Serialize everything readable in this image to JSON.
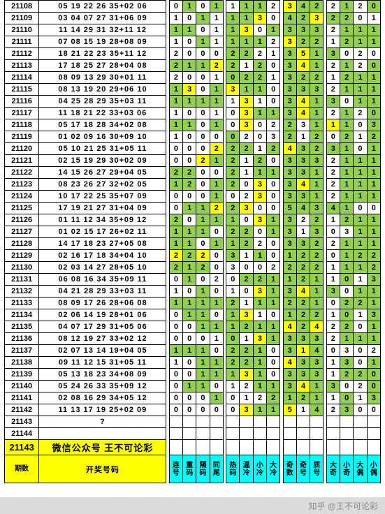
{
  "colors": {
    "yellow": "#ffff00",
    "green": "#92d050",
    "cyan": "#00ffff",
    "border": "#000000",
    "bg": "#ffffff"
  },
  "promo_text": "微信公众号 王不可论彩",
  "footer_text": "知乎 @王不可论彩",
  "headers": {
    "issue": "期数",
    "draw": "开奖号码",
    "stats": [
      "连号",
      "重码",
      "隔码",
      "同尾",
      "热码",
      "温冷",
      "小冷",
      "大冷",
      "奇数",
      "奇号",
      "质号",
      "大奇",
      "小奇",
      "大偶",
      "小偶"
    ]
  },
  "hl_cols": [
    3,
    8,
    9,
    10
  ],
  "rows": [
    {
      "i": "21108",
      "d": "05 19 22 26 35+02 06",
      "s": [
        0,
        1,
        0,
        1,
        1,
        1,
        1,
        2,
        3,
        4,
        2,
        2,
        1,
        2,
        0
      ],
      "g": [
        1,
        3,
        5,
        6,
        9,
        10,
        12,
        14
      ],
      "y": [
        8
      ]
    },
    {
      "i": "21109",
      "d": "03 04 07 27 31+06 09",
      "s": [
        1,
        0,
        1,
        1,
        1,
        1,
        3,
        0,
        4,
        2,
        3,
        2,
        2,
        0,
        1
      ],
      "g": [
        2,
        4,
        5,
        8,
        9,
        11,
        12
      ],
      "y": [
        6,
        10
      ]
    },
    {
      "i": "21110",
      "d": "11 14 29 31 32+11 12",
      "s": [
        1,
        1,
        0,
        1,
        1,
        3,
        0,
        1,
        3,
        3,
        3,
        2,
        1,
        1,
        1
      ],
      "g": [
        0,
        1,
        4,
        7,
        8,
        9,
        10,
        12,
        13,
        14
      ],
      "y": [
        5
      ]
    },
    {
      "i": "21111",
      "d": "07 08 15 19 28+08 09",
      "s": [
        1,
        0,
        1,
        1,
        1,
        1,
        1,
        2,
        3,
        2,
        2,
        1,
        2,
        1,
        1
      ],
      "g": [
        2,
        4,
        5,
        6,
        9,
        10,
        12,
        13,
        14
      ],
      "y": [
        8
      ]
    },
    {
      "i": "21112",
      "d": "18 21 22 23 35+11 12",
      "s": [
        2,
        0,
        0,
        0,
        2,
        2,
        2,
        1,
        3,
        5,
        1,
        3,
        0,
        2,
        0
      ],
      "g": [
        4,
        5,
        8,
        10,
        11
      ],
      "y": [
        9
      ]
    },
    {
      "i": "21113",
      "d": "17 18 25 27 28+04 08",
      "s": [
        2,
        1,
        1,
        2,
        2,
        1,
        2,
        0,
        3,
        4,
        1,
        2,
        1,
        2,
        0
      ],
      "g": [
        0,
        1,
        2,
        4,
        6,
        8,
        10,
        12,
        14
      ],
      "y": [
        3,
        9
      ]
    },
    {
      "i": "21114",
      "d": "08 09 13 29 30+01 11",
      "s": [
        2,
        0,
        0,
        1,
        0,
        2,
        2,
        1,
        3,
        2,
        2,
        1,
        2,
        1,
        1
      ],
      "g": [
        4,
        5,
        6,
        8,
        9,
        10,
        12,
        13,
        14
      ],
      "y": []
    },
    {
      "i": "21115",
      "d": "08 13 19 20 29+06 10",
      "s": [
        1,
        3,
        0,
        1,
        3,
        1,
        1,
        0,
        3,
        3,
        3,
        2,
        1,
        1,
        1
      ],
      "g": [
        0,
        3,
        5,
        6,
        8,
        9,
        10,
        12,
        13,
        14
      ],
      "y": [
        1,
        4
      ]
    },
    {
      "i": "21116",
      "d": "04 25 28 29 35+03 11",
      "s": [
        1,
        1,
        1,
        1,
        1,
        3,
        1,
        0,
        3,
        4,
        1,
        3,
        0,
        1,
        1
      ],
      "g": [
        0,
        1,
        2,
        3,
        8,
        10,
        11,
        13,
        14
      ],
      "y": [
        5,
        9
      ]
    },
    {
      "i": "21117",
      "d": "11 18 21 22 33+03 06",
      "s": [
        1,
        0,
        0,
        1,
        0,
        3,
        1,
        1,
        3,
        4,
        1,
        2,
        1,
        2,
        0
      ],
      "g": [
        6,
        7,
        8,
        10,
        12,
        14
      ],
      "y": [
        5,
        9
      ]
    },
    {
      "i": "21118",
      "d": "05 17 18 28 34+02 08",
      "s": [
        1,
        1,
        0,
        1,
        0,
        3,
        0,
        2,
        2,
        3,
        1,
        1,
        1,
        0,
        3
      ],
      "g": [
        0,
        1,
        3,
        8,
        10,
        12,
        14
      ],
      "y": [
        5,
        11
      ]
    },
    {
      "i": "21119",
      "d": "01 02 09 16 30+09 10",
      "s": [
        1,
        0,
        0,
        0,
        0,
        2,
        0,
        3,
        2,
        1,
        2,
        0,
        2,
        1,
        2
      ],
      "g": [
        4,
        8,
        10,
        12,
        14
      ],
      "y": []
    },
    {
      "i": "21120",
      "d": "05 10 21 25 31+05 11",
      "s": [
        0,
        0,
        0,
        2,
        2,
        2,
        1,
        2,
        4,
        3,
        2,
        3,
        1,
        0,
        1
      ],
      "g": [
        4,
        5,
        7,
        9,
        10,
        11,
        12,
        14
      ],
      "y": [
        3,
        8
      ]
    },
    {
      "i": "21121",
      "d": "02 15 19 29 30+02 09",
      "s": [
        0,
        0,
        2,
        1,
        2,
        1,
        2,
        0,
        3,
        3,
        3,
        2,
        1,
        1,
        1
      ],
      "g": [
        3,
        4,
        6,
        8,
        9,
        10,
        12,
        13,
        14
      ],
      "y": [
        2
      ]
    },
    {
      "i": "21122",
      "d": "14 15 26 27 29+04 05",
      "s": [
        2,
        2,
        0,
        0,
        2,
        1,
        1,
        1,
        3,
        3,
        1,
        2,
        1,
        1,
        1
      ],
      "g": [
        0,
        1,
        4,
        6,
        7,
        8,
        9,
        10,
        12,
        13,
        14
      ],
      "y": []
    },
    {
      "i": "21123",
      "d": "08 23 26 27 32+02 05",
      "s": [
        1,
        2,
        0,
        1,
        2,
        0,
        3,
        0,
        3,
        4,
        1,
        2,
        1,
        1,
        1
      ],
      "g": [
        0,
        1,
        3,
        4,
        8,
        10,
        12,
        13,
        14
      ],
      "y": [
        6,
        9
      ]
    },
    {
      "i": "21124",
      "d": "10 17 22 25 35+07 09",
      "s": [
        0,
        0,
        0,
        1,
        0,
        2,
        3,
        0,
        3,
        3,
        1,
        2,
        1,
        1,
        1
      ],
      "g": [
        3,
        8,
        9,
        10,
        12,
        13,
        14
      ],
      "y": [
        6
      ]
    },
    {
      "i": "21125",
      "d": "17 19 21 27 31+04 09",
      "s": [
        0,
        1,
        1,
        2,
        2,
        3,
        0,
        0,
        5,
        4,
        3,
        4,
        1,
        0,
        0
      ],
      "g": [
        1,
        2,
        4,
        9,
        8,
        10,
        11,
        12
      ],
      "y": [
        3,
        5
      ]
    },
    {
      "i": "21126",
      "d": "01 11 12 34 35+09 12",
      "s": [
        2,
        0,
        1,
        1,
        1,
        0,
        3,
        1,
        3,
        2,
        2,
        1,
        2,
        1,
        1
      ],
      "g": [
        0,
        2,
        3,
        4,
        7,
        8,
        10,
        12,
        13,
        14
      ],
      "y": [
        6
      ]
    },
    {
      "i": "21127",
      "d": "01 02 15 17 26+02 11",
      "s": [
        1,
        1,
        1,
        0,
        2,
        2,
        0,
        1,
        3,
        1,
        3,
        0,
        3,
        1,
        1
      ],
      "g": [
        0,
        1,
        2,
        4,
        5,
        7,
        8,
        10,
        13,
        14
      ],
      "y": []
    },
    {
      "i": "21128",
      "d": "14 17 18 23 27+05 08",
      "s": [
        1,
        1,
        0,
        1,
        1,
        2,
        2,
        0,
        3,
        3,
        2,
        2,
        1,
        1,
        1
      ],
      "g": [
        0,
        1,
        3,
        4,
        5,
        8,
        9,
        10,
        12,
        13,
        14
      ],
      "y": []
    },
    {
      "i": "21129",
      "d": "02 16 17 18 34+04 10",
      "s": [
        2,
        2,
        2,
        0,
        3,
        1,
        1,
        0,
        1,
        2,
        2,
        0,
        1,
        2,
        2
      ],
      "g": [
        1,
        4,
        6,
        8,
        9,
        10,
        12,
        13,
        14
      ],
      "y": [
        0,
        2
      ]
    },
    {
      "i": "21130",
      "d": "02 03 14 27 28+05 10",
      "s": [
        2,
        1,
        2,
        0,
        3,
        0,
        0,
        2,
        2,
        2,
        2,
        1,
        1,
        1,
        2
      ],
      "g": [
        0,
        1,
        2,
        8,
        9,
        10,
        12,
        13,
        14
      ],
      "y": []
    },
    {
      "i": "21131",
      "d": "06 08 16 34 35+09 11",
      "s": [
        0,
        1,
        0,
        2,
        0,
        2,
        2,
        1,
        1,
        2,
        1,
        1,
        0,
        1,
        3
      ],
      "g": [
        1,
        5,
        6,
        7,
        8,
        9,
        10,
        12,
        14
      ],
      "y": []
    },
    {
      "i": "21132",
      "d": "04 21 28 29 33+03 11",
      "s": [
        1,
        0,
        1,
        0,
        1,
        0,
        3,
        1,
        3,
        4,
        1,
        3,
        0,
        1,
        1
      ],
      "g": [
        2,
        7,
        8,
        10,
        11,
        13,
        14
      ],
      "y": [
        6,
        9
      ]
    },
    {
      "i": "21133",
      "d": "08 09 17 26 28+06 08",
      "s": [
        1,
        1,
        1,
        1,
        2,
        1,
        1,
        1,
        2,
        2,
        1,
        0,
        2,
        2,
        1
      ],
      "g": [
        0,
        1,
        2,
        3,
        4,
        6,
        7,
        8,
        9,
        10,
        12,
        13,
        14
      ],
      "y": []
    },
    {
      "i": "21134",
      "d": "02 06 14 19 28+01 06",
      "s": [
        0,
        1,
        1,
        0,
        1,
        3,
        1,
        0,
        1,
        2,
        2,
        1,
        0,
        1,
        3
      ],
      "g": [
        1,
        2,
        4,
        8,
        9,
        10,
        12,
        14
      ],
      "y": [
        5
      ]
    },
    {
      "i": "21135",
      "d": "04 07 17 29 31+05 06",
      "s": [
        0,
        0,
        1,
        1,
        1,
        2,
        1,
        1,
        4,
        2,
        4,
        2,
        2,
        0,
        1
      ],
      "g": [
        2,
        3,
        4,
        5,
        6,
        7,
        9,
        12,
        14
      ],
      "y": [
        8,
        10
      ]
    },
    {
      "i": "21136",
      "d": "08 12 19 27 33+02 12",
      "s": [
        0,
        0,
        0,
        1,
        0,
        1,
        3,
        1,
        3,
        3,
        3,
        2,
        1,
        1,
        1
      ],
      "g": [
        4,
        7,
        8,
        9,
        10,
        12,
        13,
        14
      ],
      "y": [
        6
      ]
    },
    {
      "i": "21137",
      "d": "02 07 13 14 19+04 05",
      "s": [
        1,
        1,
        1,
        0,
        2,
        2,
        1,
        0,
        3,
        1,
        4,
        0,
        3,
        0,
        2
      ],
      "g": [
        0,
        1,
        2,
        4,
        5,
        6,
        8,
        10
      ],
      "y": [
        9
      ]
    },
    {
      "i": "21138",
      "d": "09 11 12 15 31+05 11",
      "s": [
        1,
        0,
        1,
        1,
        2,
        2,
        1,
        0,
        4,
        3,
        3,
        1,
        3,
        0,
        1
      ],
      "g": [
        2,
        3,
        4,
        5,
        6,
        9,
        10,
        12,
        14
      ],
      "y": [
        8
      ]
    },
    {
      "i": "21139",
      "d": "05 13 18 23 34+08 09",
      "s": [
        0,
        0,
        1,
        1,
        1,
        3,
        1,
        0,
        3,
        3,
        3,
        1,
        2,
        2,
        0
      ],
      "g": [
        2,
        3,
        4,
        6,
        8,
        9,
        10,
        12,
        13,
        14
      ],
      "y": [
        5
      ]
    },
    {
      "i": "21140",
      "d": "05 24 26 33 35+09 12",
      "s": [
        0,
        1,
        1,
        0,
        1,
        2,
        1,
        1,
        3,
        4,
        1,
        3,
        0,
        2,
        0
      ],
      "g": [
        1,
        2,
        6,
        7,
        8,
        10,
        11,
        14
      ],
      "y": [
        9
      ]
    },
    {
      "i": "21141",
      "d": "02 08 16 29 34+05 12",
      "s": [
        0,
        0,
        0,
        1,
        0,
        1,
        2,
        2,
        1,
        2,
        1,
        1,
        0,
        1,
        3
      ],
      "g": [
        3,
        7,
        8,
        9,
        10,
        12,
        14
      ],
      "y": []
    },
    {
      "i": "21142",
      "d": "11 13 17 19 25+02 09",
      "s": [
        0,
        0,
        0,
        0,
        0,
        3,
        1,
        1,
        5,
        1,
        4,
        2,
        3,
        0,
        0
      ],
      "g": [
        6,
        7,
        10,
        12
      ],
      "y": [
        5,
        8
      ]
    },
    {
      "i": "21143",
      "d": "?",
      "s": [],
      "g": [],
      "y": []
    },
    {
      "i": "21144",
      "d": "",
      "s": [],
      "g": [],
      "y": []
    }
  ],
  "promo_row_issue": "21143"
}
